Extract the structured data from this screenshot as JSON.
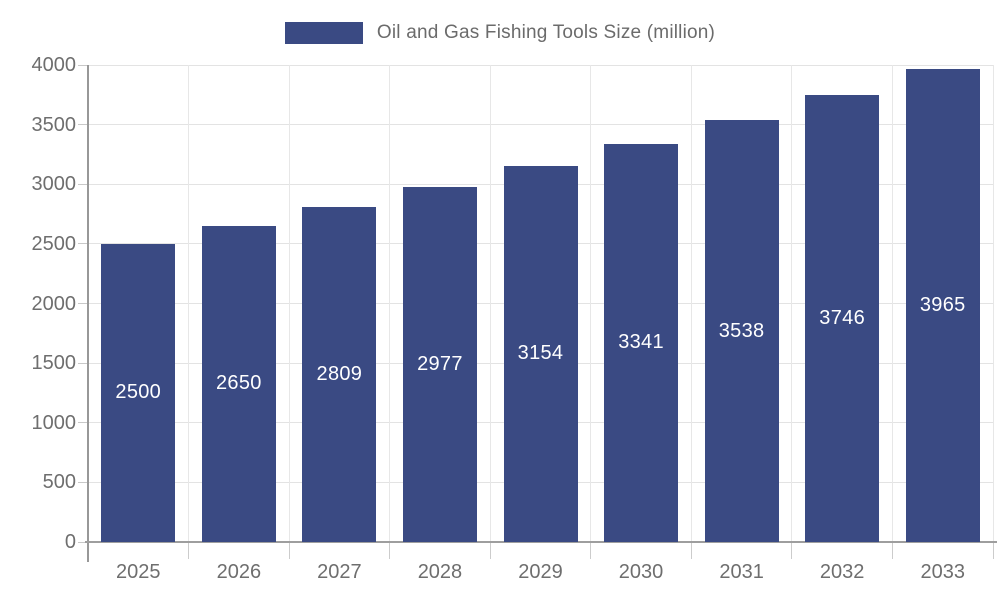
{
  "legend": {
    "label": "Oil and Gas Fishing Tools Size (million)",
    "swatch_color": "#3a4a83"
  },
  "chart_data": {
    "type": "bar",
    "title": "Oil and Gas Fishing Tools Size (million)",
    "categories": [
      "2025",
      "2026",
      "2027",
      "2028",
      "2029",
      "2030",
      "2031",
      "2032",
      "2033"
    ],
    "values": [
      2500,
      2650,
      2809,
      2977,
      3154,
      3341,
      3538,
      3746,
      3965
    ],
    "xlabel": "",
    "ylabel": "",
    "ylim": [
      0,
      4000
    ],
    "yticks": [
      0,
      500,
      1000,
      1500,
      2000,
      2500,
      3000,
      3500,
      4000
    ],
    "grid": true,
    "legend_position": "top-center",
    "bar_color": "#3a4a83",
    "bar_label_color": "#ffffff",
    "axis_text_color": "#6e6e6e"
  }
}
